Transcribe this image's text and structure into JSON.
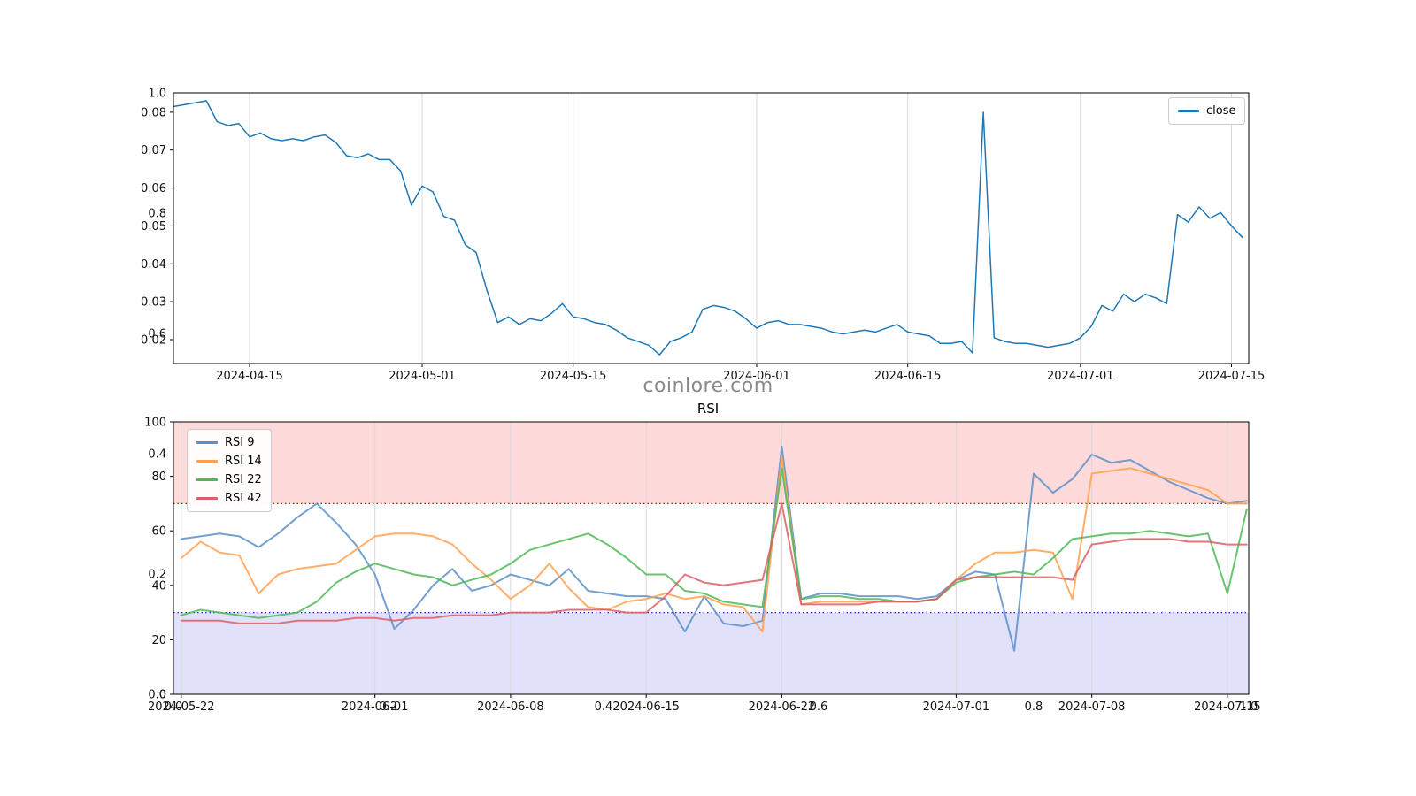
{
  "watermark": "coinlore.com",
  "overlay_axis": {
    "labels": [
      "0.0",
      "0.2",
      "0.4",
      "0.6",
      "0.8",
      "1.0"
    ]
  },
  "chart_data": [
    {
      "id": "price",
      "type": "line",
      "title": "",
      "xlabel": "",
      "ylabel": "",
      "grid": "vertical",
      "legend": {
        "position": "top-right"
      },
      "ylim": [
        0.0137,
        0.0851
      ],
      "yticks": [
        {
          "v": 0.02,
          "label": "0.02"
        },
        {
          "v": 0.03,
          "label": "0.03"
        },
        {
          "v": 0.04,
          "label": "0.04"
        },
        {
          "v": 0.05,
          "label": "0.05"
        },
        {
          "v": 0.06,
          "label": "0.06"
        },
        {
          "v": 0.07,
          "label": "0.07"
        },
        {
          "v": 0.08,
          "label": "0.08"
        }
      ],
      "xticks": [
        {
          "date": "2024-04-15",
          "label": "2024-04-15"
        },
        {
          "date": "2024-05-01",
          "label": "2024-05-01"
        },
        {
          "date": "2024-05-15",
          "label": "2024-05-15"
        },
        {
          "date": "2024-06-01",
          "label": "2024-06-01"
        },
        {
          "date": "2024-06-15",
          "label": "2024-06-15"
        },
        {
          "date": "2024-07-01",
          "label": "2024-07-01"
        },
        {
          "date": "2024-07-15",
          "label": "2024-07-15"
        }
      ],
      "series": [
        {
          "name": "close",
          "color": "#1f77b4",
          "start": "2024-04-08",
          "values": [
            0.0815,
            0.082,
            0.0825,
            0.083,
            0.0775,
            0.0765,
            0.077,
            0.0735,
            0.0745,
            0.073,
            0.0725,
            0.073,
            0.0725,
            0.0735,
            0.074,
            0.072,
            0.0685,
            0.068,
            0.069,
            0.0675,
            0.0675,
            0.0645,
            0.0555,
            0.0605,
            0.059,
            0.0525,
            0.0515,
            0.045,
            0.043,
            0.033,
            0.0245,
            0.026,
            0.024,
            0.0255,
            0.025,
            0.027,
            0.0295,
            0.026,
            0.0255,
            0.0245,
            0.024,
            0.0225,
            0.0205,
            0.0195,
            0.0185,
            0.016,
            0.0195,
            0.0205,
            0.022,
            0.028,
            0.029,
            0.0285,
            0.0275,
            0.0255,
            0.023,
            0.0245,
            0.025,
            0.024,
            0.024,
            0.0235,
            0.023,
            0.022,
            0.0215,
            0.022,
            0.0225,
            0.022,
            0.023,
            0.024,
            0.022,
            0.0215,
            0.021,
            0.019,
            0.019,
            0.0195,
            0.0165,
            0.08,
            0.0205,
            0.0195,
            0.019,
            0.019,
            0.0185,
            0.018,
            0.0185,
            0.019,
            0.0205,
            0.0235,
            0.029,
            0.0275,
            0.032,
            0.03,
            0.032,
            0.031,
            0.0295,
            0.053,
            0.051,
            0.055,
            0.052,
            0.0535,
            0.05,
            0.047
          ]
        }
      ]
    },
    {
      "id": "rsi",
      "type": "line",
      "title": "RSI",
      "xlabel": "",
      "ylabel": "",
      "grid": "vertical",
      "legend": {
        "position": "top-left"
      },
      "ylim": [
        0,
        100
      ],
      "yticks": [
        {
          "v": 0,
          "label": "0"
        },
        {
          "v": 20,
          "label": "20"
        },
        {
          "v": 40,
          "label": "40"
        },
        {
          "v": 60,
          "label": "60"
        },
        {
          "v": 80,
          "label": "80"
        },
        {
          "v": 100,
          "label": "100"
        }
      ],
      "xticks": [
        {
          "date": "2024-05-22",
          "label": "2024-05-22"
        },
        {
          "date": "2024-06-01",
          "label": "2024-06-01"
        },
        {
          "date": "2024-06-08",
          "label": "2024-06-08"
        },
        {
          "date": "2024-06-15",
          "label": "2024-06-15"
        },
        {
          "date": "2024-06-22",
          "label": "2024-06-22"
        },
        {
          "date": "2024-07-01",
          "label": "2024-07-01"
        },
        {
          "date": "2024-07-08",
          "label": "2024-07-08"
        },
        {
          "date": "2024-07-15",
          "label": "2024-07-15"
        }
      ],
      "bands": [
        {
          "name": "overbought",
          "from": 70,
          "to": 100,
          "color": "rgba(255,140,140,0.32)"
        },
        {
          "name": "oversold",
          "from": 0,
          "to": 30,
          "color": "rgba(120,120,230,0.22)"
        }
      ],
      "hlines": [
        {
          "name": "overbought-threshold-line",
          "y": 70,
          "color": "#dd0000"
        },
        {
          "name": "oversold-threshold-line",
          "y": 30,
          "color": "#2222cc"
        }
      ],
      "series": [
        {
          "name": "RSI 9",
          "color": "#5b8fc9",
          "start": "2024-05-22",
          "values": [
            57,
            58,
            59,
            58,
            54,
            59,
            65,
            70,
            63,
            55,
            44,
            24,
            31,
            40,
            46,
            38,
            40,
            44,
            42,
            40,
            46,
            38,
            37,
            36,
            36,
            35,
            23,
            36,
            26,
            25,
            27,
            91,
            35,
            37,
            37,
            36,
            36,
            36,
            35,
            36,
            42,
            45,
            44,
            16,
            81,
            74,
            79,
            88,
            85,
            86,
            82,
            78,
            75,
            72,
            70,
            71
          ]
        },
        {
          "name": "RSI 14",
          "color": "#ffa14e",
          "start": "2024-05-22",
          "values": [
            50,
            56,
            52,
            51,
            37,
            44,
            46,
            47,
            48,
            53,
            58,
            59,
            59,
            58,
            55,
            48,
            42,
            35,
            40,
            48,
            39,
            32,
            31,
            34,
            35,
            37,
            35,
            36,
            33,
            32,
            23,
            87,
            33,
            34,
            34,
            34,
            34,
            34,
            34,
            35,
            42,
            48,
            52,
            52,
            53,
            52,
            35,
            81,
            82,
            83,
            81,
            79,
            77,
            75,
            70,
            70
          ]
        },
        {
          "name": "RSI 22",
          "color": "#4db856",
          "start": "2024-05-22",
          "values": [
            29,
            31,
            30,
            29,
            28,
            29,
            30,
            34,
            41,
            45,
            48,
            46,
            44,
            43,
            40,
            42,
            44,
            48,
            53,
            55,
            57,
            59,
            55,
            50,
            44,
            44,
            38,
            37,
            34,
            33,
            32,
            83,
            35,
            36,
            36,
            35,
            35,
            34,
            34,
            35,
            41,
            43,
            44,
            45,
            44,
            50,
            57,
            58,
            59,
            59,
            60,
            59,
            58,
            59,
            37,
            68
          ]
        },
        {
          "name": "RSI 42",
          "color": "#dd5e66",
          "start": "2024-05-22",
          "values": [
            27,
            27,
            27,
            26,
            26,
            26,
            27,
            27,
            27,
            28,
            28,
            27,
            28,
            28,
            29,
            29,
            29,
            30,
            30,
            30,
            31,
            31,
            31,
            30,
            30,
            36,
            44,
            41,
            40,
            41,
            42,
            70,
            33,
            33,
            33,
            33,
            34,
            34,
            34,
            35,
            42,
            43,
            43,
            43,
            43,
            43,
            42,
            55,
            56,
            57,
            57,
            57,
            56,
            56,
            55,
            55
          ]
        }
      ]
    }
  ]
}
